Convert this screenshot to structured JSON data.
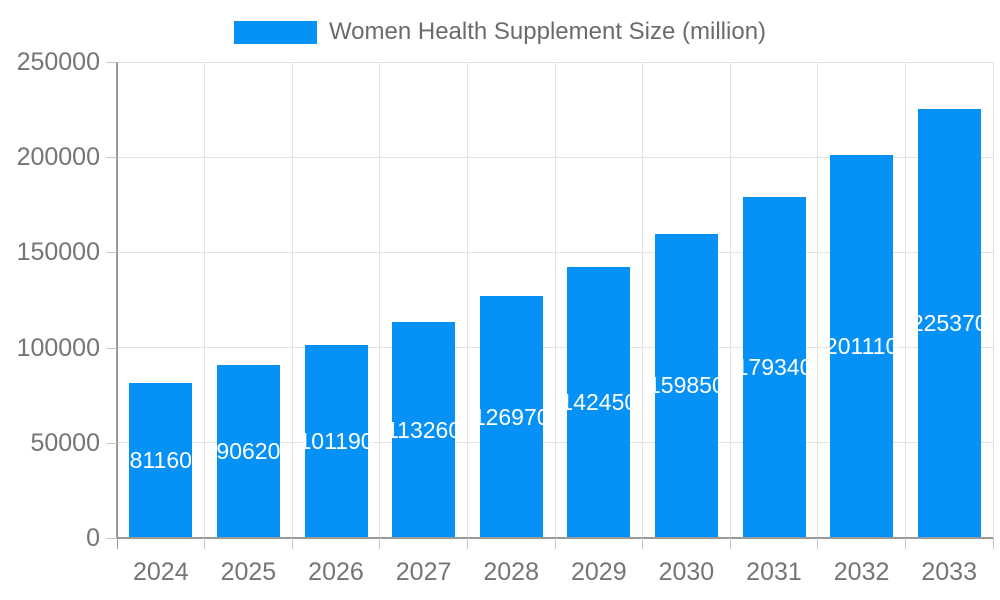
{
  "legend": {
    "items": [
      {
        "label": "Women Health Supplement Size (million)",
        "color": "#0591f5"
      }
    ]
  },
  "chart_data": {
    "type": "bar",
    "title": "Women Health Supplement Size (million)",
    "categories": [
      "2024",
      "2025",
      "2026",
      "2027",
      "2028",
      "2029",
      "2030",
      "2031",
      "2032",
      "2033"
    ],
    "series": [
      {
        "name": "Women Health Supplement Size (million)",
        "values": [
          81160,
          90620,
          101190,
          113260,
          126970,
          142450,
          159850,
          179340,
          201110,
          225370
        ]
      }
    ],
    "value_labels": [
      "81160",
      "90620",
      "101190",
      "113260",
      "126970",
      "142450",
      "159850",
      "179340",
      "201110",
      "225370"
    ],
    "xlabel": "",
    "ylabel": "",
    "ylim": [
      0,
      250000
    ],
    "yticks": [
      0,
      50000,
      100000,
      150000,
      200000,
      250000
    ],
    "grid": true,
    "legend_position": "top-center",
    "value_labels_inside_bars": true
  },
  "colors": {
    "bar": "#0591f5",
    "gridline": "#e2e2e2",
    "axis": "#9a9a9a",
    "tick": "#c6c6c6",
    "axis_text": "#757575",
    "legend_text": "#6b6b6b",
    "value_label_text": "#ffffff",
    "background": "#ffffff"
  }
}
